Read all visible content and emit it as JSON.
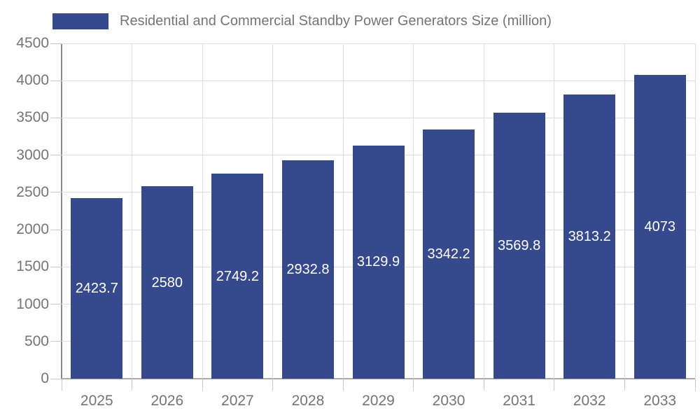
{
  "legend": {
    "label": "Residential and Commercial Standby Power Generators Size (million)"
  },
  "chart_data": {
    "type": "bar",
    "title": "Residential and Commercial Standby Power Generators Size (million)",
    "categories": [
      "2025",
      "2026",
      "2027",
      "2028",
      "2029",
      "2030",
      "2031",
      "2032",
      "2033"
    ],
    "values": [
      2423.7,
      2580,
      2749.2,
      2932.8,
      3129.9,
      3342.2,
      3569.8,
      3813.2,
      4073
    ],
    "value_labels": [
      "2423.7",
      "2580",
      "2749.2",
      "2932.8",
      "3129.9",
      "3342.2",
      "3569.8",
      "3813.2",
      "4073"
    ],
    "xlabel": "",
    "ylabel": "",
    "ylim": [
      0,
      4500
    ],
    "ytick_step": 500,
    "ytick_labels": [
      "0",
      "500",
      "1000",
      "1500",
      "2000",
      "2500",
      "3000",
      "3500",
      "4000",
      "4500"
    ],
    "grid": true,
    "legend_position": "top-left",
    "colors": {
      "bar": "#36498D",
      "bar_label": "#FFFFFF",
      "axis_text": "#757575",
      "gridline": "#DEDEDE",
      "y_axis_line": "#8C8C8C",
      "x_axis_line": "#A9A9A9",
      "tick": "#C9C9C9"
    }
  }
}
